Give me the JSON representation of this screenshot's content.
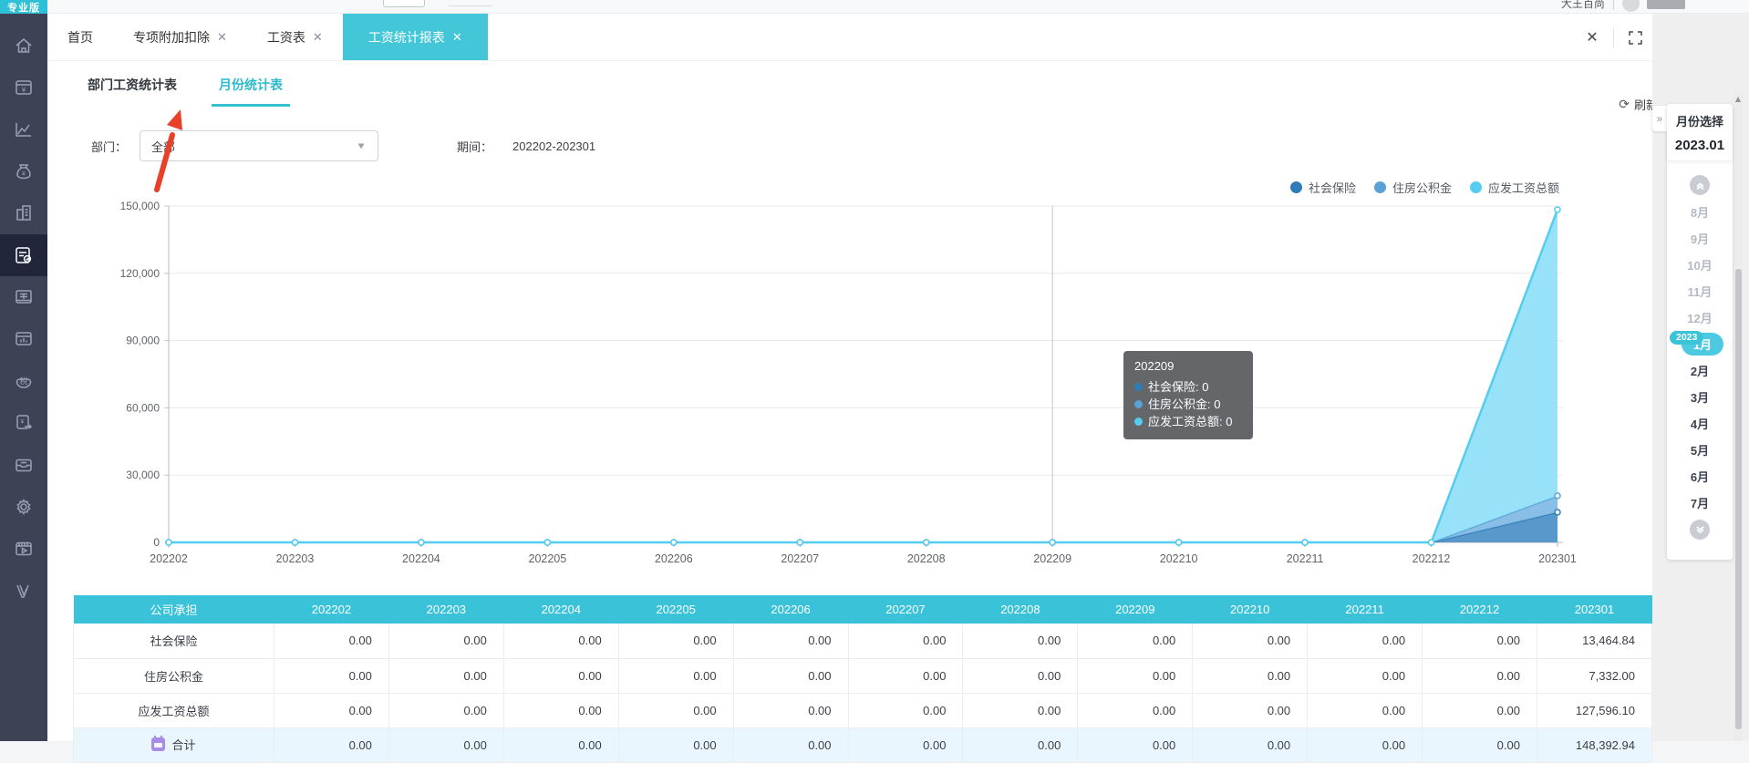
{
  "app": {
    "edition_badge": "专业版",
    "accent": "#3ac3d8"
  },
  "top_bar": {
    "user_text": "大王百尚"
  },
  "sidebar": {
    "items": [
      {
        "icon": "home-icon",
        "active": false
      },
      {
        "icon": "billing-icon",
        "active": false
      },
      {
        "icon": "report-chart-icon",
        "active": false
      },
      {
        "icon": "funds-icon",
        "active": false
      },
      {
        "icon": "enterprise-icon",
        "active": false
      },
      {
        "icon": "salary-report-icon",
        "active": true
      },
      {
        "icon": "cashier-icon",
        "active": false
      },
      {
        "icon": "invoice-window-icon",
        "active": false
      },
      {
        "icon": "tax-icon",
        "active": false
      },
      {
        "icon": "voucher-transfer-icon",
        "active": false
      },
      {
        "icon": "archive-icon",
        "active": false
      },
      {
        "icon": "settings-gear-icon",
        "active": false
      },
      {
        "icon": "tutorial-video-icon",
        "active": false
      },
      {
        "icon": "version-v-icon",
        "active": false
      }
    ]
  },
  "tabs": [
    {
      "label": "首页",
      "closable": false,
      "active": false
    },
    {
      "label": "专项附加扣除",
      "closable": true,
      "active": false
    },
    {
      "label": "工资表",
      "closable": true,
      "active": false
    },
    {
      "label": "工资统计报表",
      "closable": true,
      "active": true
    }
  ],
  "window_controls": {
    "close": "✕"
  },
  "subtabs": [
    {
      "label": "部门工资统计表",
      "active": false
    },
    {
      "label": "月份统计表",
      "active": true
    }
  ],
  "toolbar": {
    "refresh_label": "刷新"
  },
  "filters": {
    "dept_label": "部门：",
    "dept_value": "全部",
    "period_label": "期间：",
    "period_value": "202202-202301"
  },
  "chart_data": {
    "type": "area",
    "stacked": true,
    "x": [
      "202202",
      "202203",
      "202204",
      "202205",
      "202206",
      "202207",
      "202208",
      "202209",
      "202210",
      "202211",
      "202212",
      "202301"
    ],
    "series": [
      {
        "name": "社会保险",
        "color": "#2e7db9",
        "fill": "#4b8fc6",
        "values": [
          0,
          0,
          0,
          0,
          0,
          0,
          0,
          0,
          0,
          0,
          0,
          13464.84
        ]
      },
      {
        "name": "住房公积金",
        "color": "#5aa2d6",
        "fill": "#7fb9e4",
        "values": [
          0,
          0,
          0,
          0,
          0,
          0,
          0,
          0,
          0,
          0,
          0,
          7332.0
        ]
      },
      {
        "name": "应发工资总额",
        "color": "#55cdf0",
        "fill": "#8edff7",
        "values": [
          0,
          0,
          0,
          0,
          0,
          0,
          0,
          0,
          0,
          0,
          0,
          127596.1
        ]
      }
    ],
    "ylim": [
      0,
      150000
    ],
    "yticks": [
      0,
      30000,
      60000,
      90000,
      120000,
      150000
    ],
    "ytick_labels": [
      "0",
      "30,000",
      "60,000",
      "90,000",
      "120,000",
      "150,000"
    ],
    "grid": true,
    "legend_position": "top-right",
    "pointer_index": 7,
    "tooltip": {
      "title": "202209",
      "rows": [
        {
          "label": "社会保险",
          "value": "0"
        },
        {
          "label": "住房公积金",
          "value": "0"
        },
        {
          "label": "应发工资总额",
          "value": "0"
        }
      ]
    }
  },
  "table": {
    "columns": [
      "公司承担",
      "202202",
      "202203",
      "202204",
      "202205",
      "202206",
      "202207",
      "202208",
      "202209",
      "202210",
      "202211",
      "202212",
      "202301"
    ],
    "rows": [
      {
        "label": "社会保险",
        "total": false,
        "values": [
          "0.00",
          "0.00",
          "0.00",
          "0.00",
          "0.00",
          "0.00",
          "0.00",
          "0.00",
          "0.00",
          "0.00",
          "0.00",
          "13,464.84"
        ]
      },
      {
        "label": "住房公积金",
        "total": false,
        "values": [
          "0.00",
          "0.00",
          "0.00",
          "0.00",
          "0.00",
          "0.00",
          "0.00",
          "0.00",
          "0.00",
          "0.00",
          "0.00",
          "7,332.00"
        ]
      },
      {
        "label": "应发工资总额",
        "total": false,
        "values": [
          "0.00",
          "0.00",
          "0.00",
          "0.00",
          "0.00",
          "0.00",
          "0.00",
          "0.00",
          "0.00",
          "0.00",
          "0.00",
          "127,596.10"
        ]
      },
      {
        "label": "合计",
        "total": true,
        "values": [
          "0.00",
          "0.00",
          "0.00",
          "0.00",
          "0.00",
          "0.00",
          "0.00",
          "0.00",
          "0.00",
          "0.00",
          "0.00",
          "148,392.94"
        ]
      }
    ]
  },
  "month_selector": {
    "header": "月份选择",
    "current_period": "2023.01",
    "year_badge": "2023",
    "months": [
      {
        "label": "8月",
        "state": "disabled"
      },
      {
        "label": "9月",
        "state": "disabled"
      },
      {
        "label": "10月",
        "state": "disabled"
      },
      {
        "label": "11月",
        "state": "disabled"
      },
      {
        "label": "12月",
        "state": "disabled"
      },
      {
        "label": "1月",
        "state": "selected"
      },
      {
        "label": "2月",
        "state": "normal"
      },
      {
        "label": "3月",
        "state": "normal"
      },
      {
        "label": "4月",
        "state": "normal"
      },
      {
        "label": "5月",
        "state": "normal"
      },
      {
        "label": "6月",
        "state": "normal"
      },
      {
        "label": "7月",
        "state": "normal"
      }
    ]
  }
}
